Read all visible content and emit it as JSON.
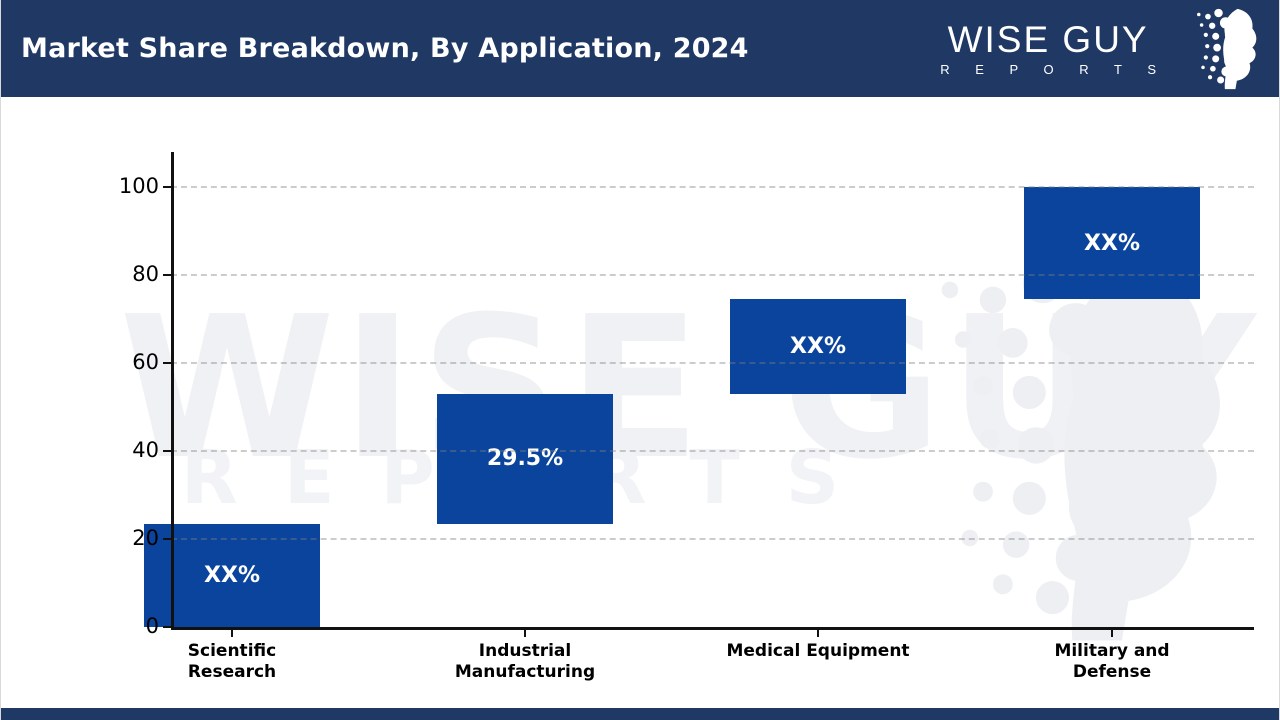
{
  "header": {
    "title": "Market Share Breakdown, By Application, 2024",
    "background": "#1f3864"
  },
  "logo": {
    "line1": "WISE GUY",
    "line2": "R E P O R T S"
  },
  "watermark": {
    "line1": "WISE GUY",
    "line2": "REPORTS"
  },
  "chart_data": {
    "type": "bar",
    "subtype": "waterfall",
    "title": "Market Share Breakdown, By Application, 2024",
    "categories": [
      "Scientific Research",
      "Industrial Manufacturing",
      "Medical Equipment",
      "Military and Defense"
    ],
    "category_display": [
      "Scientific\nResearch",
      "Industrial\nManufacturing",
      "Medical Equipment",
      "Military and\nDefense"
    ],
    "segments": [
      {
        "category": "Scientific Research",
        "from": 0,
        "to": 23.5,
        "value": 23.5,
        "label": "XX%"
      },
      {
        "category": "Industrial Manufacturing",
        "from": 23.5,
        "to": 53,
        "value": 29.5,
        "label": "29.5%"
      },
      {
        "category": "Medical Equipment",
        "from": 53,
        "to": 74.5,
        "value": 21.5,
        "label": "XX%"
      },
      {
        "category": "Military and Defense",
        "from": 74.5,
        "to": 100,
        "value": 25.5,
        "label": "XX%"
      }
    ],
    "yticks": [
      0,
      20,
      40,
      60,
      80,
      100
    ],
    "ylim": [
      0,
      107
    ],
    "xlabel": "",
    "ylabel": "",
    "grid": "horizontal-dashed",
    "legend": "none",
    "bar_color": "#0a449c",
    "bar_label_color": "#ffffff"
  }
}
